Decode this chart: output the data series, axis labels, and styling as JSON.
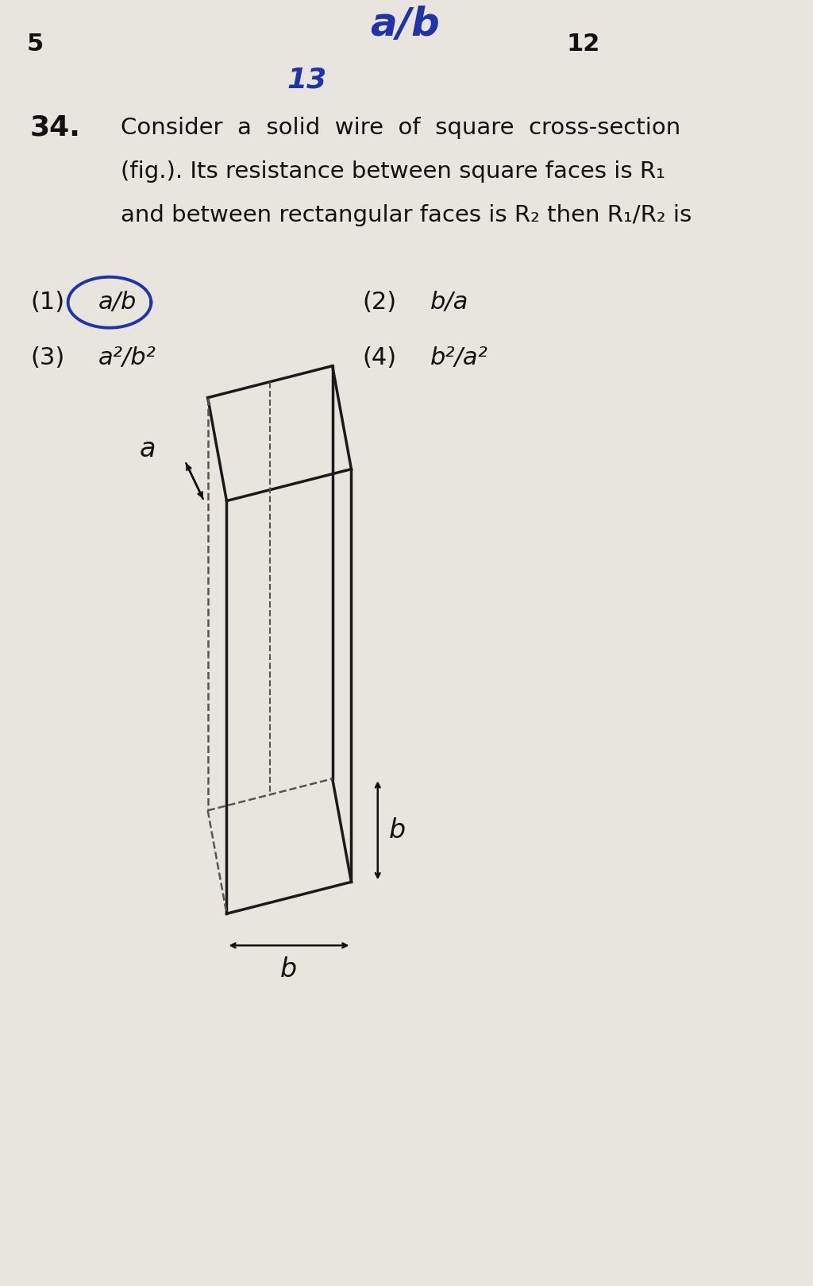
{
  "background_color": "#e8e4de",
  "question_number": "34.",
  "page_num_left": "5",
  "page_num_right": "12",
  "question_text_line1": "Consider  a  solid  wire  of  square  cross-section",
  "question_text_line2": "(fig.). Its resistance between square faces is R₁",
  "question_text_line3": "and between rectangular faces is R₂ then R₁/R₂ is",
  "options": [
    {
      "num": "(1)",
      "text": "a/b"
    },
    {
      "num": "(2)",
      "text": "b/a"
    },
    {
      "num": "(3)",
      "text": "a²/b²"
    },
    {
      "num": "(4)",
      "text": "b²/a²"
    }
  ],
  "label_a": "a",
  "label_b_side": "b",
  "label_b_bottom": "b",
  "line_color": "#1a1a1a",
  "dash_color": "#555555",
  "text_color": "#111111",
  "blue_color": "#2233aa",
  "arrow_color": "#111111"
}
